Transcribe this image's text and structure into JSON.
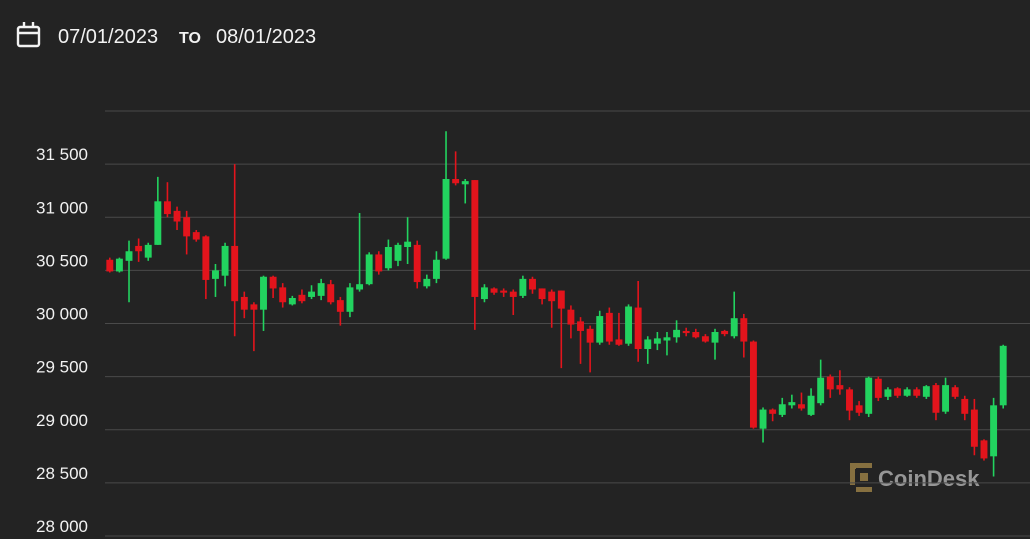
{
  "header": {
    "from": "07/01/2023",
    "to_label": "TO",
    "to": "08/01/2023"
  },
  "chart_data": {
    "type": "candlestick",
    "watermark": "CoinDesk",
    "up_color": "#22d35f",
    "down_color": "#e3141c",
    "grid": true,
    "ylim": [
      28000,
      32000
    ],
    "yticks": [
      {
        "value": 28000,
        "label": "28 000"
      },
      {
        "value": 28500,
        "label": "28 500"
      },
      {
        "value": 29000,
        "label": "29 000"
      },
      {
        "value": 29500,
        "label": "29 500"
      },
      {
        "value": 30000,
        "label": "30 000"
      },
      {
        "value": 30500,
        "label": "30 500"
      },
      {
        "value": 31000,
        "label": "31 000"
      },
      {
        "value": 31500,
        "label": "31 500"
      }
    ],
    "open": [
      30600,
      30490,
      30590,
      30730,
      30620,
      30740,
      31150,
      31060,
      31000,
      30860,
      30820,
      30420,
      30450,
      30730,
      30250,
      30180,
      30130,
      30440,
      30340,
      30180,
      30270,
      30250,
      30260,
      30370,
      30220,
      30110,
      30320,
      30370,
      30650,
      30520,
      30590,
      30720,
      30740,
      30350,
      30420,
      30610,
      31360,
      31310,
      31350,
      30230,
      30330,
      30310,
      30300,
      30260,
      30420,
      30330,
      30300,
      30310,
      30130,
      30020,
      29950,
      29820,
      30100,
      29850,
      29810,
      30150,
      29760,
      29810,
      29840,
      29870,
      29930,
      29920,
      29880,
      29820,
      29930,
      29880,
      30050,
      29830,
      29010,
      29190,
      29140,
      29230,
      29240,
      29140,
      29250,
      29500,
      29420,
      29380,
      29230,
      29150,
      29480,
      29310,
      29390,
      29320,
      29380,
      29310,
      29420,
      29170,
      29400,
      29290,
      29190,
      28900,
      28750,
      29230
    ],
    "high": [
      30620,
      30620,
      30780,
      30800,
      30760,
      31380,
      31330,
      31100,
      31060,
      30880,
      30830,
      30560,
      30760,
      31500,
      30300,
      30200,
      30450,
      30450,
      30380,
      30260,
      30320,
      30360,
      30420,
      30410,
      30250,
      30380,
      31040,
      30670,
      30680,
      30790,
      30760,
      31000,
      30780,
      30460,
      30680,
      31810,
      31620,
      31360,
      31350,
      30370,
      30340,
      30330,
      30320,
      30450,
      30440,
      30330,
      30320,
      30310,
      30170,
      30060,
      29980,
      30120,
      30150,
      30100,
      30180,
      30400,
      29880,
      29920,
      29920,
      30030,
      29960,
      29950,
      29900,
      29950,
      29940,
      30300,
      30090,
      29840,
      29210,
      29200,
      29300,
      29330,
      29350,
      29390,
      29660,
      29520,
      29560,
      29400,
      29270,
      29500,
      29500,
      29400,
      29400,
      29400,
      29400,
      29420,
      29440,
      29490,
      29420,
      29320,
      29290,
      28910,
      29300,
      29800
    ],
    "low": [
      30480,
      30480,
      30200,
      30580,
      30590,
      30740,
      31000,
      30880,
      30650,
      30770,
      30230,
      30250,
      30350,
      29880,
      30050,
      29740,
      29930,
      30240,
      30150,
      30170,
      30190,
      30230,
      30220,
      30180,
      29980,
      30060,
      30300,
      30360,
      30460,
      30500,
      30540,
      30560,
      30330,
      30330,
      30380,
      30600,
      31300,
      31130,
      29940,
      30200,
      30270,
      30250,
      30080,
      30240,
      30280,
      30180,
      29960,
      29580,
      29860,
      29620,
      29540,
      29800,
      29800,
      29790,
      29790,
      29640,
      29620,
      29750,
      29700,
      29820,
      29880,
      29860,
      29820,
      29660,
      29880,
      29860,
      29680,
      29010,
      28880,
      29080,
      29120,
      29200,
      29180,
      29130,
      29230,
      29300,
      29330,
      29090,
      29130,
      29120,
      29270,
      29280,
      29300,
      29310,
      29300,
      29290,
      29090,
      29150,
      29290,
      29090,
      28760,
      28710,
      28560,
      29200
    ],
    "close": [
      30490,
      30610,
      30680,
      30680,
      30740,
      31150,
      31030,
      30960,
      30820,
      30790,
      30410,
      30500,
      30730,
      30210,
      30130,
      30130,
      30440,
      30330,
      30200,
      30240,
      30210,
      30300,
      30380,
      30200,
      30110,
      30340,
      30370,
      30650,
      30490,
      30720,
      30740,
      30770,
      30390,
      30420,
      30600,
      31360,
      31320,
      31340,
      30250,
      30340,
      30290,
      30290,
      30250,
      30420,
      30320,
      30230,
      30210,
      30140,
      29990,
      29930,
      29820,
      30070,
      29830,
      29800,
      30160,
      29760,
      29850,
      29860,
      29870,
      29940,
      29910,
      29870,
      29830,
      29920,
      29900,
      30050,
      29830,
      29020,
      29190,
      29150,
      29240,
      29260,
      29200,
      29320,
      29490,
      29380,
      29380,
      29180,
      29160,
      29490,
      29300,
      29380,
      29320,
      29380,
      29320,
      29410,
      29160,
      29420,
      29310,
      29150,
      28840,
      28730,
      29230,
      29790
    ]
  }
}
